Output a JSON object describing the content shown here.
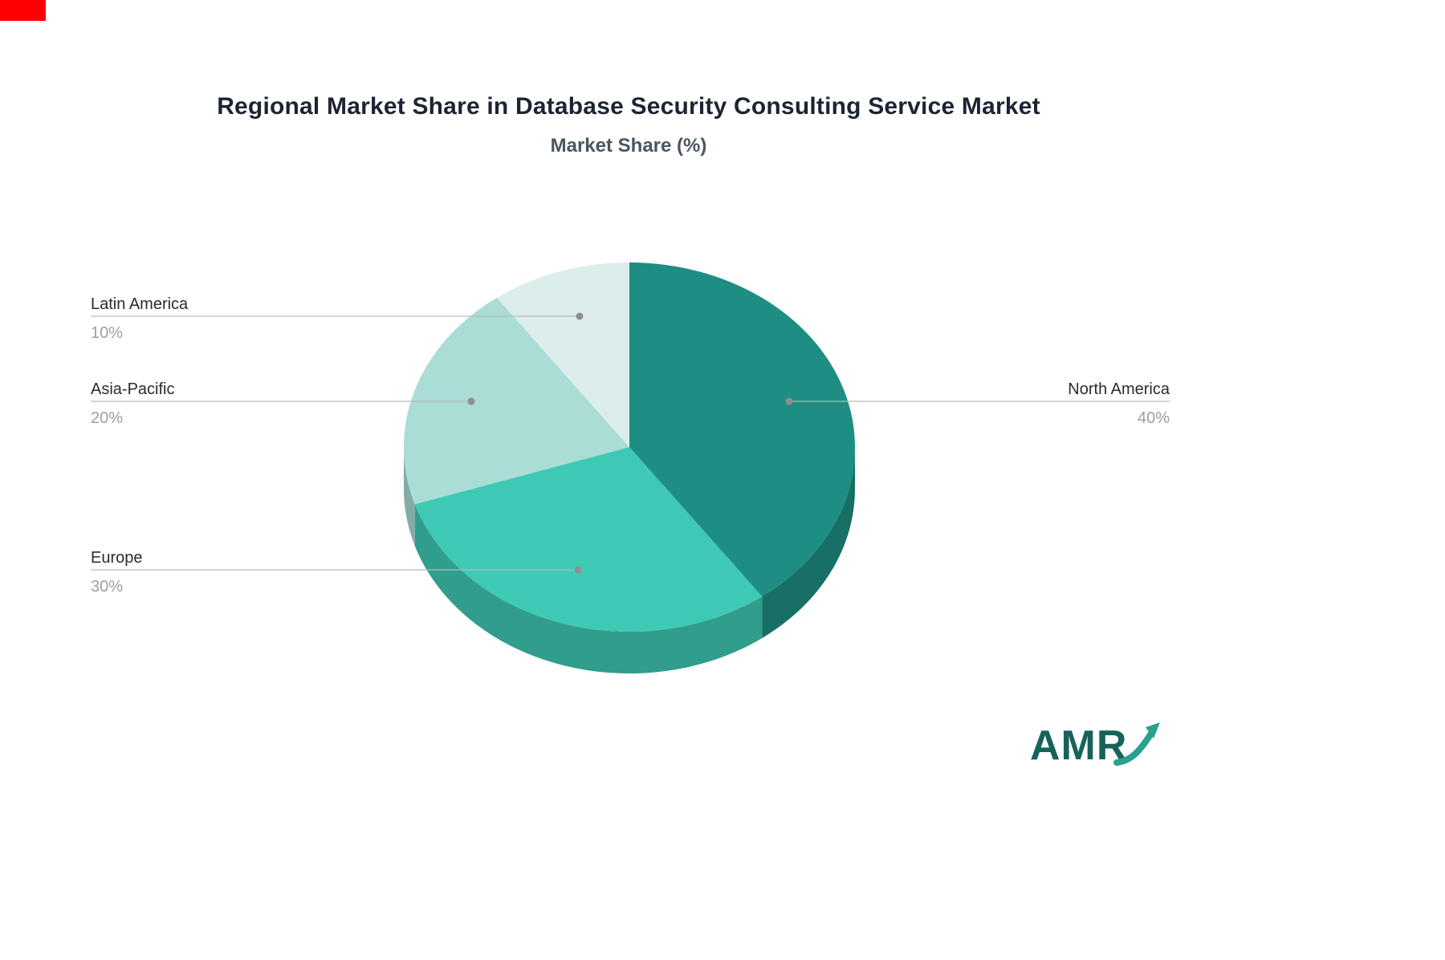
{
  "page": {
    "background": "#ffffff",
    "corner_marker_color": "#ff0000"
  },
  "chart_data": {
    "type": "pie",
    "title": "Regional Market Share in Database Security Consulting Service Market",
    "subtitle": "Market Share (%)",
    "categories": [
      "North America",
      "Europe",
      "Asia-Pacific",
      "Latin America"
    ],
    "values": [
      40,
      30,
      20,
      10
    ],
    "unit": "%",
    "colors": [
      "#1e8e83",
      "#3ec9b5",
      "#a9ddd6",
      "#dceeec"
    ],
    "effect": "3d",
    "start_angle": "top",
    "direction": "clockwise",
    "legend_position": "none",
    "leader_line_color": "#b9b9b9",
    "leader_dot_color": "#8f8f8f",
    "labels": [
      {
        "name": "North America",
        "value_label": "40%"
      },
      {
        "name": "Europe",
        "value_label": "30%"
      },
      {
        "name": "Asia-Pacific",
        "value_label": "20%"
      },
      {
        "name": "Latin America",
        "value_label": "10%"
      }
    ]
  },
  "logo": {
    "text": "AMR",
    "text_color": "#17635c",
    "arrow_color": "#2aa08f"
  }
}
